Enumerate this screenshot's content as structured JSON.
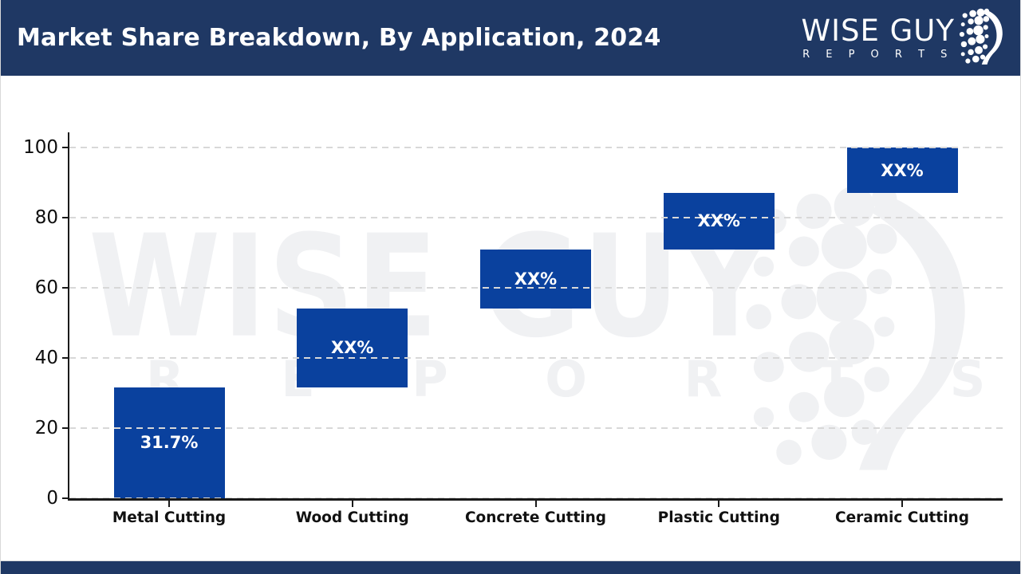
{
  "header": {
    "title": "Market Share Breakdown, By Application, 2024",
    "logo": {
      "line1": "WISE GUY",
      "line2": "R E P O R T S"
    }
  },
  "watermark": {
    "line1": "WISE GUY",
    "line2": "R E P O R T S"
  },
  "footer": {},
  "colors": {
    "header_bg": "#1f3864",
    "footer_bg": "#1f3864",
    "bar": "#0a419e",
    "axis": "#1a1a1a",
    "grid": "#d8d8d8",
    "watermark": "#f0f1f3",
    "bar_label_text": "#ffffff",
    "title_text": "#ffffff"
  },
  "chart_data": {
    "type": "bar",
    "subtype": "waterfall",
    "title": "Market Share Breakdown, By Application, 2024",
    "xlabel": "",
    "ylabel": "",
    "ylim": [
      0,
      100
    ],
    "yticks": [
      0,
      20,
      40,
      60,
      80,
      100
    ],
    "grid": "dashed-horizontal",
    "legend": "none",
    "categories": [
      "Metal Cutting",
      "Wood Cutting",
      "Concrete Cutting",
      "Plastic Cutting",
      "Ceramic Cutting"
    ],
    "segments": [
      {
        "category": "Metal Cutting",
        "start": 0,
        "end": 31.7,
        "value": 31.7,
        "label": "31.7%"
      },
      {
        "category": "Wood Cutting",
        "start": 31.7,
        "end": 54,
        "value": 22.3,
        "label": "XX%"
      },
      {
        "category": "Concrete Cutting",
        "start": 54,
        "end": 71,
        "value": 17,
        "label": "XX%"
      },
      {
        "category": "Plastic Cutting",
        "start": 71,
        "end": 87,
        "value": 16,
        "label": "XX%"
      },
      {
        "category": "Ceramic Cutting",
        "start": 87,
        "end": 100,
        "value": 13,
        "label": "XX%"
      }
    ]
  }
}
